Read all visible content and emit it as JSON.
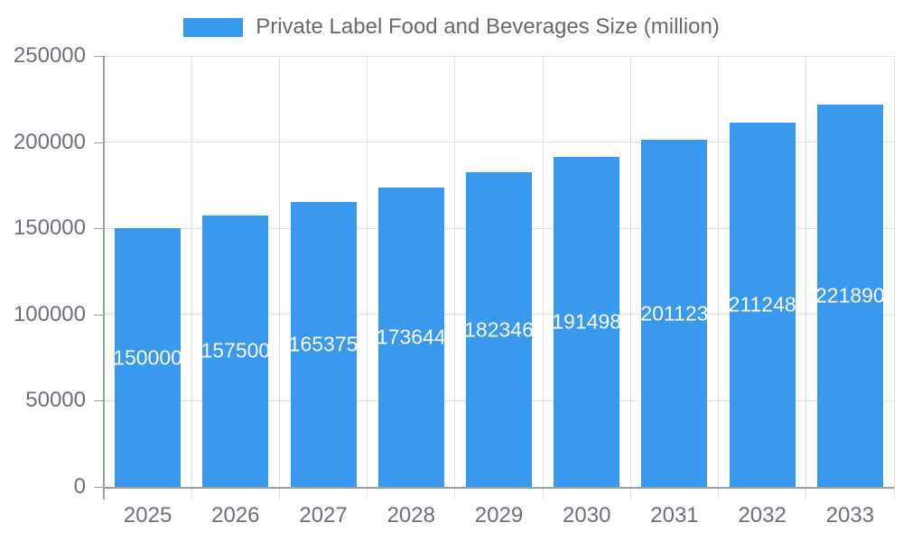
{
  "legend": {
    "label": "Private Label Food and Beverages Size (million)"
  },
  "colors": {
    "bar": "#3999EE",
    "grid": "#E2E2E2",
    "axis": "#9B9EA3",
    "axis_text": "#6E7079",
    "bar_label_text": "#FFFFFF",
    "legend_text": "#666A6E"
  },
  "chart_data": {
    "type": "bar",
    "title": "Private Label Food and Beverages Size (million)",
    "categories": [
      "2025",
      "2026",
      "2027",
      "2028",
      "2029",
      "2030",
      "2031",
      "2032",
      "2033"
    ],
    "series": [
      {
        "name": "Private Label Food and Beverages Size (million)",
        "values": [
          150000,
          157500,
          165375,
          173644,
          182346,
          191498,
          201123,
          211248,
          221890
        ]
      }
    ],
    "xlabel": "",
    "ylabel": "",
    "ylim": [
      0,
      250000
    ],
    "yticks": [
      0,
      50000,
      100000,
      150000,
      200000,
      250000
    ],
    "grid": true,
    "legend_position": "top",
    "bar_label_position": "inside-center",
    "bar_width_fraction": 0.75
  }
}
